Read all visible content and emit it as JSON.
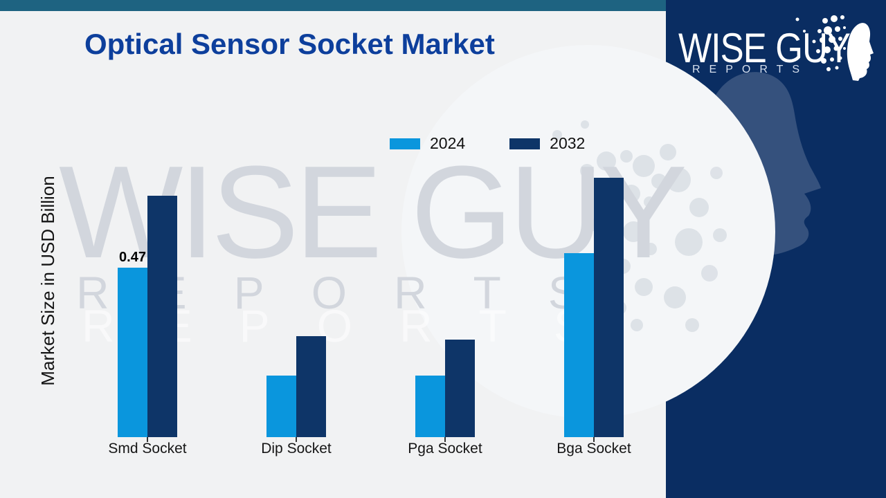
{
  "page": {
    "background_color": "#f1f2f3",
    "bottom_strip_color": "#1e6381"
  },
  "header": {
    "title": "Optical Sensor Socket Market",
    "title_color": "#0d3f9c"
  },
  "y_axis_label": "Market Size in USD Billion",
  "legend": {
    "items": [
      {
        "label": "2024",
        "color": "#0a96dd"
      },
      {
        "label": "2032",
        "color": "#0e3568"
      }
    ]
  },
  "chart_data": {
    "type": "bar",
    "title": "Optical Sensor Socket Market",
    "xlabel": "",
    "ylabel": "Market Size in USD Billion",
    "categories": [
      "Smd Socket",
      "Dip Socket",
      "Pga Socket",
      "Bga Socket"
    ],
    "series": [
      {
        "name": "2024",
        "color": "#0a96dd",
        "values": [
          0.47,
          0.17,
          0.17,
          0.51
        ]
      },
      {
        "name": "2032",
        "color": "#0e3568",
        "values": [
          0.67,
          0.28,
          0.27,
          0.72
        ]
      }
    ],
    "value_labels": [
      {
        "series": "2024",
        "category": "Smd Socket",
        "text": "0.47"
      }
    ],
    "ylim": [
      0,
      0.8
    ],
    "grid": false,
    "legend_position": "top-center"
  },
  "watermark": {
    "line1": "WISE GUY",
    "line2": "REPORTS"
  },
  "brand_panel": {
    "panel_color": "#0a2d62",
    "face_color": "#35517d",
    "logo_line1": "WISE GUY",
    "logo_line2": "REPORTS"
  }
}
